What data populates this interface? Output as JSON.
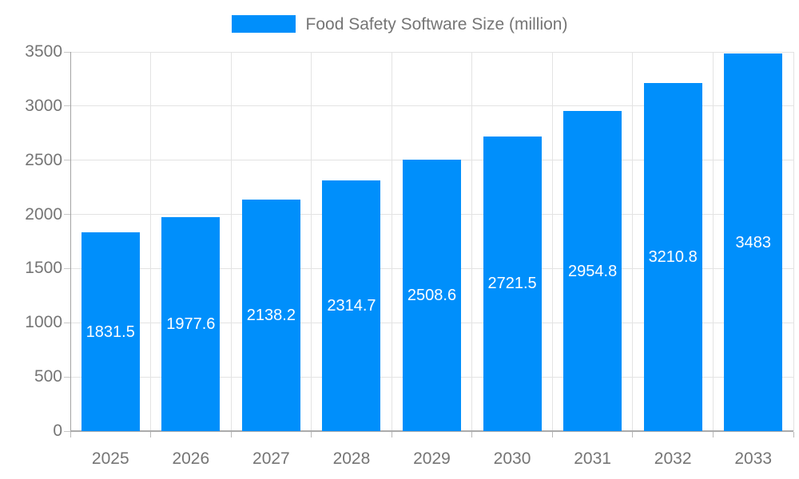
{
  "chart_data": {
    "type": "bar",
    "title": "Food Safety Software Size (million)",
    "categories": [
      "2025",
      "2026",
      "2027",
      "2028",
      "2029",
      "2030",
      "2031",
      "2032",
      "2033"
    ],
    "series": [
      {
        "name": "Food Safety Software Size (million)",
        "values": [
          1831.5,
          1977.6,
          2138.2,
          2314.7,
          2508.6,
          2721.5,
          2954.8,
          3210.8,
          3483
        ]
      }
    ],
    "value_labels": [
      "1831.5",
      "1977.6",
      "2138.2",
      "2314.7",
      "2508.6",
      "2721.5",
      "2954.8",
      "3210.8",
      "3483"
    ],
    "xlabel": "",
    "ylabel": "",
    "ylim": [
      0,
      3500
    ],
    "yticks": [
      0,
      500,
      1000,
      1500,
      2000,
      2500,
      3000,
      3500
    ],
    "grid": true,
    "legend_position": "top",
    "colors": {
      "bar": "#008FFB",
      "value_label": "#FFFFFF",
      "axis_text": "#757575",
      "gridline": "#E3E3E3",
      "axis_line": "#A3A3A3",
      "tick": "#C8C8C8"
    }
  }
}
